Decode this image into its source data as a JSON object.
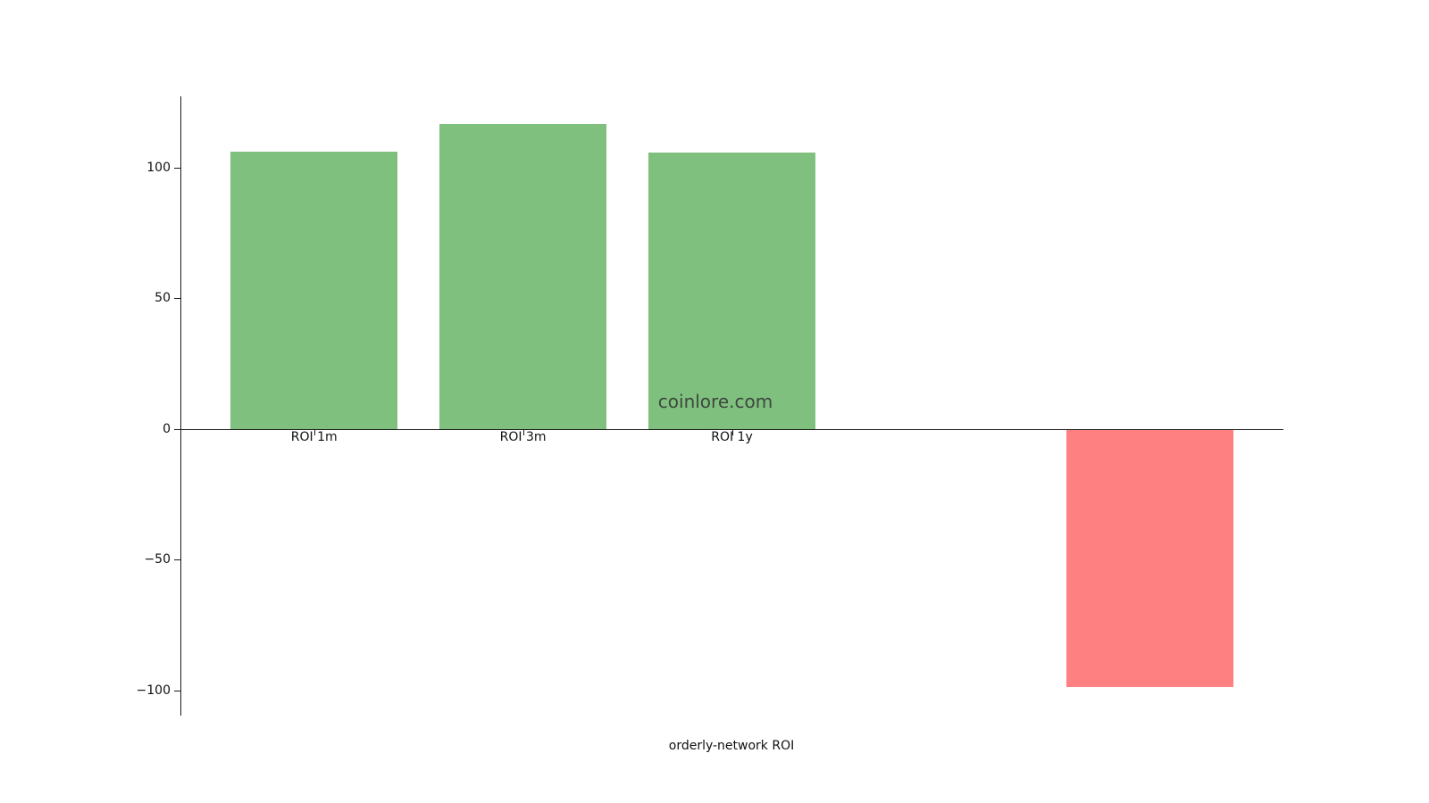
{
  "watermark": {
    "text": "coinlore.com",
    "color_hex": "#333333",
    "opacity": 0.85
  },
  "chart_data": {
    "type": "bar",
    "title": "",
    "xlabel": "orderly-network ROI",
    "ylabel": "",
    "categories": [
      "ROI 1m",
      "ROI 3m",
      "ROI 1y",
      "",
      ""
    ],
    "values": [
      106.0,
      116.6,
      105.7,
      null,
      -98.7
    ],
    "bar_colors": [
      "#7fc07f",
      "#7fc07f",
      "#7fc07f",
      null,
      "#ff8080"
    ],
    "slots": [
      0,
      1,
      2,
      3,
      4
    ],
    "bar_width_slots": 0.8,
    "x_ticks": [
      {
        "slot": 0,
        "label": "ROI 1m"
      },
      {
        "slot": 1,
        "label": "ROI 3m"
      },
      {
        "slot": 2,
        "label": "ROI 1y"
      }
    ],
    "y_ticks": [
      {
        "value": 100,
        "label": "100"
      },
      {
        "value": 50,
        "label": "50"
      },
      {
        "value": 0,
        "label": "0"
      },
      {
        "value": -50,
        "label": "−50"
      },
      {
        "value": -100,
        "label": "−100"
      }
    ],
    "ylim": [
      -109.7,
      127.3
    ],
    "xlim": [
      -0.64,
      4.64
    ],
    "grid": false,
    "legend": false,
    "zero_baseline": true,
    "axis_color": "#1a1a1a",
    "colors": {
      "positive": "#7fc07f",
      "negative": "#ff8080"
    }
  }
}
